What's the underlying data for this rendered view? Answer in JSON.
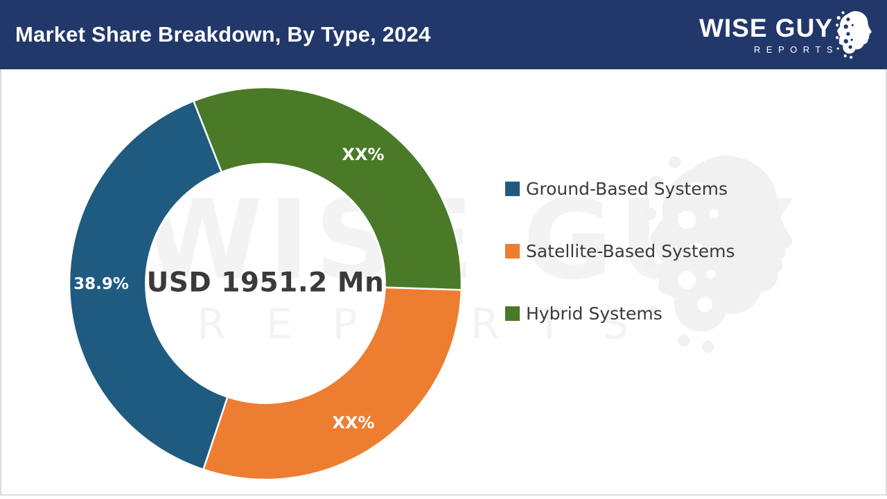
{
  "header": {
    "title": "Market Share Breakdown, By Type, 2024",
    "logo": {
      "name": "WISE GUY",
      "sub": "REPORTS"
    }
  },
  "watermark": {
    "line1": "WISE GUY",
    "line2": "REPORTS"
  },
  "chart_data": {
    "type": "pie",
    "subtype": "donut",
    "title": "Market Share Breakdown, By Type, 2024",
    "center_label": "USD 1951.2 Mn",
    "start_angle_deg": -21.5,
    "inner_radius_ratio": 0.61,
    "segments": [
      {
        "name": "Hybrid Systems",
        "pct": 31.5,
        "label": "XX%",
        "color": "#4a7a28"
      },
      {
        "name": "Satellite-Based Systems",
        "pct": 29.6,
        "label": "XX%",
        "color": "#ed7d30"
      },
      {
        "name": "Ground-Based Systems",
        "pct": 38.9,
        "label": "38.9%",
        "color": "#1f5b80"
      }
    ],
    "legend": [
      {
        "label": "Ground-Based Systems",
        "color": "#1f5b80"
      },
      {
        "label": "Satellite-Based Systems",
        "color": "#ed7d30"
      },
      {
        "label": "Hybrid Systems",
        "color": "#4a7a28"
      }
    ],
    "legend_position": "right"
  }
}
